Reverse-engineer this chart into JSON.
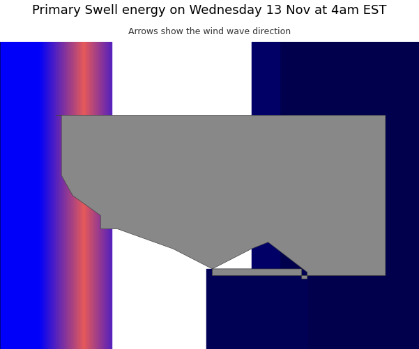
{
  "title": "Primary Swell energy on Wednesday 13 Nov at 4am EST",
  "subtitle": "Arrows show the wind wave direction",
  "title_fontsize": 13,
  "subtitle_fontsize": 9,
  "bg_color": "#ffffff",
  "header_bg": "#ffffff",
  "map_ocean_deep": "#00008B",
  "map_ocean_shallow": "#1a1aff",
  "land_color": "#888888",
  "border_color": "#000000",
  "arrow_color": "#00ffff",
  "swell_colors": [
    "#ff6600",
    "#ffaa00",
    "#ffff00",
    "#00ccff",
    "#0000cc"
  ],
  "figsize": [
    6.01,
    5.01
  ],
  "dpi": 100
}
